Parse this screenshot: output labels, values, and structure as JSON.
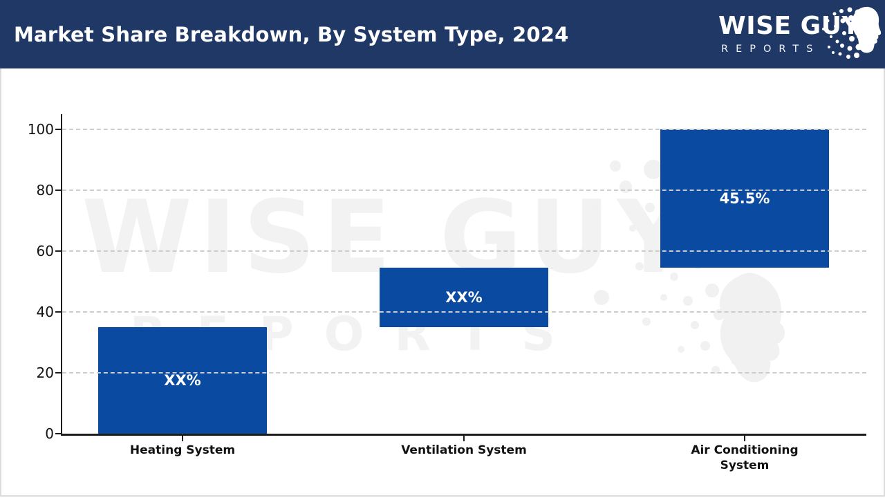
{
  "header": {
    "title": "Market Share Breakdown, By System Type, 2024",
    "logo": {
      "wordmark": "WISE GUY",
      "subtext": "REPORTS"
    }
  },
  "watermark": {
    "wordmark": "WISE GUY",
    "subtext": "REPORTS"
  },
  "chart_data": {
    "type": "bar",
    "subtype": "floating-range-waterfall",
    "title": "Market Share Breakdown, By System Type, 2024",
    "categories": [
      "Heating System",
      "Ventilation System",
      "Air Conditioning System"
    ],
    "series": [
      {
        "name": "Heating System",
        "start": 0,
        "end": 35,
        "label": "XX%"
      },
      {
        "name": "Ventilation System",
        "start": 35,
        "end": 54.5,
        "label": "XX%"
      },
      {
        "name": "Air Conditioning System",
        "start": 54.5,
        "end": 100,
        "label": "45.5%"
      }
    ],
    "xlabel": "",
    "ylabel": "",
    "ylim": [
      0,
      105
    ],
    "yticks": [
      0,
      20,
      40,
      60,
      80,
      100
    ],
    "grid": "horizontal dashed, drawn above bars",
    "legend": "none",
    "bar_color": "#0b4aa1",
    "grid_color": "#cccccc",
    "axis_color": "#1d1d1d",
    "value_label_color": "#ffffff",
    "header_color": "#1f3866",
    "watermark_color": "#f2f2f3"
  }
}
